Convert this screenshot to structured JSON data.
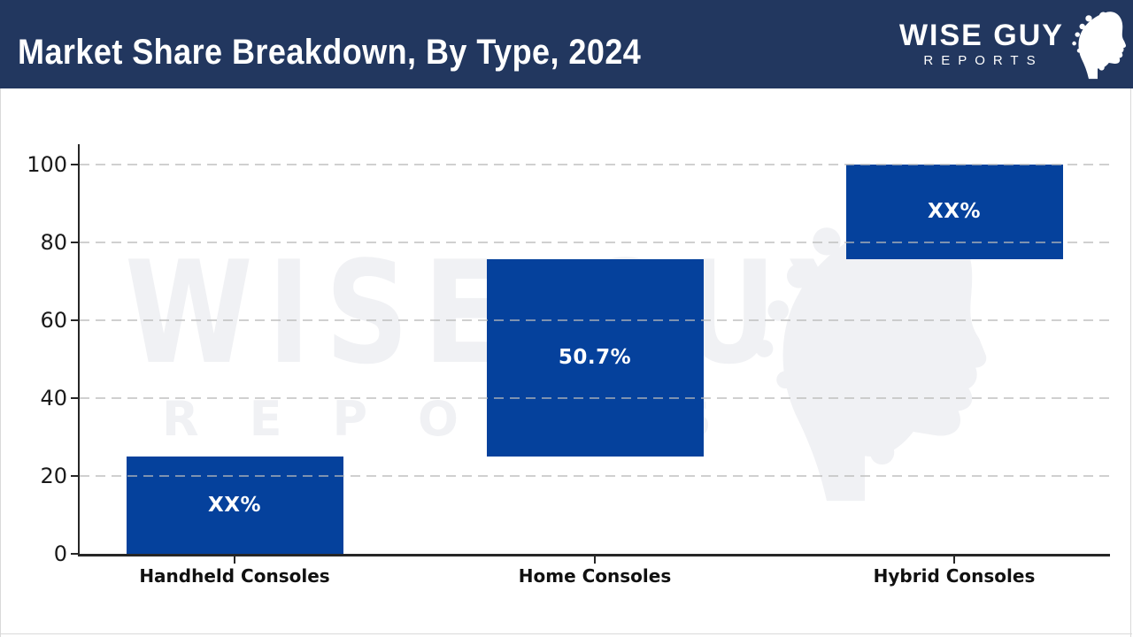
{
  "header": {
    "title": "Market Share Breakdown, By Type, 2024",
    "logo": {
      "brand_line1": "WISE GUY",
      "brand_line2": "REPORTS"
    }
  },
  "watermark": {
    "brand": "WISE GUY",
    "sub": "REPORTS"
  },
  "chart_data": {
    "type": "bar",
    "variant": "stacked_percentage_waterfall",
    "title": "Market Share Breakdown, By Type, 2024",
    "categories": [
      "Handheld Consoles",
      "Home Consoles",
      "Hybrid Consoles"
    ],
    "segments": [
      {
        "category": "Handheld Consoles",
        "start": 0,
        "end": 25,
        "value_label": "XX%"
      },
      {
        "category": "Home Consoles",
        "start": 25,
        "end": 75.7,
        "value_label": "50.7%"
      },
      {
        "category": "Hybrid Consoles",
        "start": 75.7,
        "end": 100,
        "value_label": "XX%"
      }
    ],
    "y_ticks": [
      0,
      20,
      40,
      60,
      80,
      100
    ],
    "ylim": [
      0,
      100
    ],
    "grid": "dashed horizontal, drawn over bars",
    "legend": "none",
    "bar_color": "#05419c",
    "bar_label_color": "#ffffff",
    "axis_color": "#262626"
  },
  "colors": {
    "header_bg": "#22375f",
    "watermark": "#f0f1f4",
    "grid": "#bdbdbd",
    "border": "#d9d9d9"
  }
}
